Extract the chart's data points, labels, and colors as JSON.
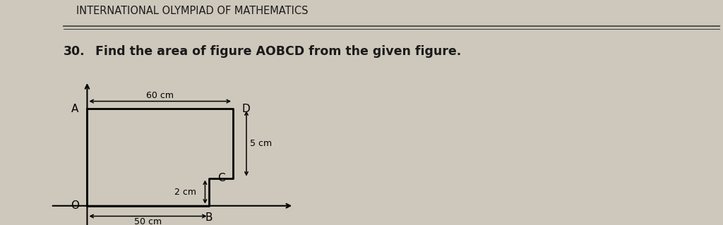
{
  "title": "INTERNATIONAL OLYMPIAD OF MATHEMATICS",
  "problem_num": "30.",
  "problem_text": "Find the area of figure AOBCD from the given figure.",
  "bg_color": "#cec8bc",
  "text_color": "#1a1a1a",
  "title_fontsize": 10.5,
  "problem_fontsize": 12.5,
  "dim_60cm_label": "60 cm",
  "dim_50cm_label": "50 cm",
  "dim_5cm_label": "5 cm",
  "dim_2cm_label": "2 cm",
  "label_O": "O",
  "label_A": "A",
  "label_B": "B",
  "label_C": "C",
  "label_D": "D",
  "shape_x": [
    0,
    6,
    6,
    5,
    5,
    0,
    0
  ],
  "shape_y": [
    7,
    7,
    2,
    2,
    0,
    0,
    7
  ],
  "O": [
    0,
    0
  ],
  "A": [
    0,
    7
  ],
  "B": [
    5,
    0
  ],
  "C": [
    5,
    2
  ],
  "D": [
    6,
    7
  ],
  "xlim": [
    -1.8,
    9.5
  ],
  "ylim": [
    -2.2,
    9.5
  ]
}
